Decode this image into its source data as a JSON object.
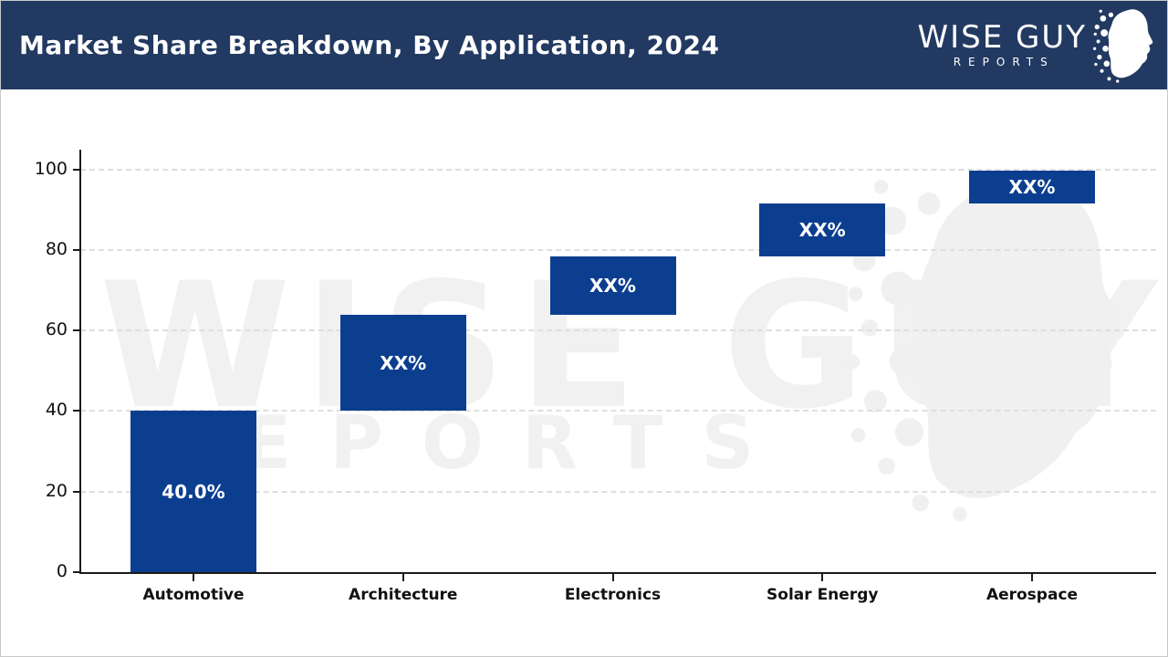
{
  "header": {
    "title": "Market Share Breakdown, By Application, 2024",
    "background": "#223a62",
    "logo": {
      "line1": "WISE GUY",
      "line2": "REPORTS"
    }
  },
  "watermark": {
    "line1": "WISE GUY",
    "line2": "REPORTS"
  },
  "chart_data": {
    "type": "bar",
    "subtype": "waterfall",
    "title": "Market Share Breakdown, By Application, 2024",
    "categories": [
      "Automotive",
      "Architecture",
      "Electronics",
      "Solar Energy",
      "Aerospace"
    ],
    "segments": [
      {
        "category": "Automotive",
        "start": 0,
        "end": 40,
        "label": "40.0%"
      },
      {
        "category": "Architecture",
        "start": 40,
        "end": 63.8,
        "label": "XX%"
      },
      {
        "category": "Electronics",
        "start": 63.8,
        "end": 78.3,
        "label": "XX%"
      },
      {
        "category": "Solar Energy",
        "start": 78.4,
        "end": 91.4,
        "label": "XX%"
      },
      {
        "category": "Aerospace",
        "start": 91.6,
        "end": 99.7,
        "label": "XX%"
      }
    ],
    "yticks": [
      0,
      20,
      40,
      60,
      80,
      100
    ],
    "ylim": [
      0,
      105
    ],
    "xlabel": "",
    "ylabel": "",
    "legend": "none",
    "grid": "dashed-horizontal",
    "bar_color": "#0c3e90",
    "bar_label_color": "#ffffff",
    "axis_color": "#1a1a1a"
  }
}
